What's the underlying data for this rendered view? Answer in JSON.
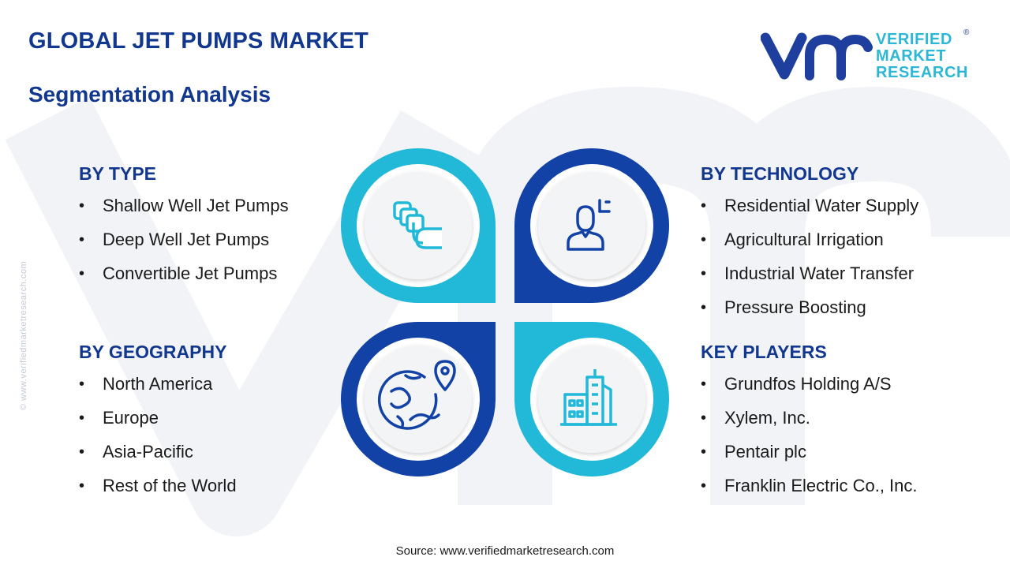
{
  "header": {
    "title": "GLOBAL JET PUMPS MARKET",
    "subtitle": "Segmentation Analysis"
  },
  "logo": {
    "mark": "vmr",
    "lines": [
      "VERIFIED",
      "MARKET",
      "RESEARCH"
    ],
    "registered": "®"
  },
  "side_url": "© www.verifiedmarketresearch.com",
  "segments": {
    "type": {
      "heading": "BY TYPE",
      "items": [
        "Shallow Well Jet Pumps",
        "Deep Well Jet Pumps",
        "Convertible Jet Pumps"
      ]
    },
    "geography": {
      "heading": "BY GEOGRAPHY",
      "items": [
        "North America",
        "Europe",
        "Asia-Pacific",
        "Rest of the World"
      ]
    },
    "technology": {
      "heading": "BY TECHNOLOGY",
      "items": [
        "Residential Water Supply",
        "Agricultural Irrigation",
        "Industrial Water Transfer",
        "Pressure Boosting"
      ]
    },
    "key_players": {
      "heading": "KEY PLAYERS",
      "items": [
        "Grundfos Holding A/S",
        "Xylem, Inc.",
        "Pentair plc",
        "Franklin Electric Co., Inc."
      ]
    }
  },
  "quadrants": [
    {
      "position": "top-left",
      "icon": "stacked-squares-icon",
      "color": "#22b8d8"
    },
    {
      "position": "top-right",
      "icon": "person-icon",
      "color": "#1242a6"
    },
    {
      "position": "bottom-left",
      "icon": "globe-location-icon",
      "color": "#1242a6"
    },
    {
      "position": "bottom-right",
      "icon": "city-buildings-icon",
      "color": "#22b8d8"
    }
  ],
  "colors": {
    "navy": "#12378f",
    "blue": "#1242a6",
    "cyan": "#22b8d8",
    "circle_fill": "#f3f4f6"
  },
  "source": "Source: www.verifiedmarketresearch.com"
}
